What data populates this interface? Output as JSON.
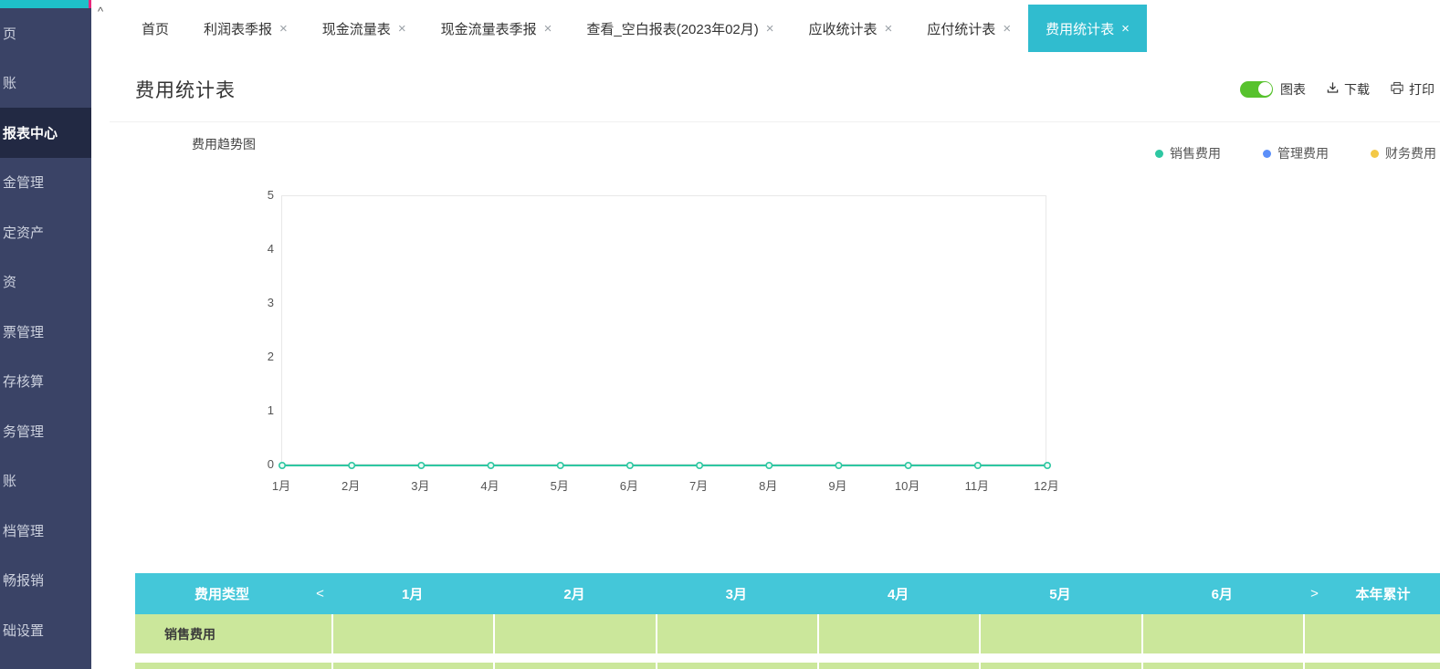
{
  "colors": {
    "accent_cyan": "#1ec0c9",
    "accent_magenta": "#e9267c",
    "sidebar_bg": "#3a4366",
    "sidebar_active_bg": "#222943",
    "tab_active_bg": "#30bccf",
    "table_header_bg": "#44c7d9",
    "row_green": "#cbe79b",
    "toggle_green": "#57c22d"
  },
  "sidebar": {
    "scroll_up_icon": "^",
    "items": [
      {
        "label": "页",
        "active": false
      },
      {
        "label": "账",
        "active": false
      },
      {
        "label": "报表中心",
        "active": true
      },
      {
        "label": "金管理",
        "active": false
      },
      {
        "label": "定资产",
        "active": false
      },
      {
        "label": "资",
        "active": false
      },
      {
        "label": "票管理",
        "active": false
      },
      {
        "label": "存核算",
        "active": false
      },
      {
        "label": "务管理",
        "active": false
      },
      {
        "label": "账",
        "active": false
      },
      {
        "label": "档管理",
        "active": false
      },
      {
        "label": "畅报销",
        "active": false
      },
      {
        "label": "础设置",
        "active": false
      }
    ]
  },
  "tabs": [
    {
      "label": "首页",
      "closable": false,
      "active": false
    },
    {
      "label": "利润表季报",
      "closable": true,
      "active": false
    },
    {
      "label": "现金流量表",
      "closable": true,
      "active": false
    },
    {
      "label": "现金流量表季报",
      "closable": true,
      "active": false
    },
    {
      "label": "查看_空白报表(2023年02月)",
      "closable": true,
      "active": false
    },
    {
      "label": "应收统计表",
      "closable": true,
      "active": false
    },
    {
      "label": "应付统计表",
      "closable": true,
      "active": false
    },
    {
      "label": "费用统计表",
      "closable": true,
      "active": true
    }
  ],
  "page": {
    "title": "费用统计表",
    "chart_toggle_label": "图表",
    "toggle_on": true,
    "download_label": "下载",
    "print_label": "打印"
  },
  "chart": {
    "title": "费用趋势图",
    "legend": [
      {
        "label": "销售费用",
        "color": "#2ec7a2"
      },
      {
        "label": "管理费用",
        "color": "#5b8ff9"
      },
      {
        "label": "财务费用",
        "color": "#f3c846"
      }
    ]
  },
  "chart_data": {
    "type": "line",
    "title": "费用趋势图",
    "categories": [
      "1月",
      "2月",
      "3月",
      "4月",
      "5月",
      "6月",
      "7月",
      "8月",
      "9月",
      "10月",
      "11月",
      "12月"
    ],
    "series": [
      {
        "name": "销售费用",
        "color": "#2ec7a2",
        "values": [
          0,
          0,
          0,
          0,
          0,
          0,
          0,
          0,
          0,
          0,
          0,
          0
        ]
      },
      {
        "name": "管理费用",
        "color": "#5b8ff9",
        "values": [
          0,
          0,
          0,
          0,
          0,
          0,
          0,
          0,
          0,
          0,
          0,
          0
        ]
      },
      {
        "name": "财务费用",
        "color": "#f3c846",
        "values": [
          0,
          0,
          0,
          0,
          0,
          0,
          0,
          0,
          0,
          0,
          0,
          0
        ]
      }
    ],
    "ylim": [
      0,
      5
    ],
    "y_ticks": [
      0,
      1,
      2,
      3,
      4,
      5
    ],
    "grid": false,
    "legend_position": "top-right"
  },
  "table": {
    "header": {
      "type_label": "费用类型",
      "prev_icon": "<",
      "next_icon": ">",
      "months": [
        "1月",
        "2月",
        "3月",
        "4月",
        "5月",
        "6月"
      ],
      "total_label": "本年累计"
    },
    "rows": [
      {
        "label": "销售费用",
        "values": [
          "",
          "",
          "",
          "",
          "",
          ""
        ],
        "total": ""
      },
      {
        "label": "",
        "values": [
          "",
          "",
          "",
          "",
          "",
          ""
        ],
        "total": ""
      }
    ]
  }
}
